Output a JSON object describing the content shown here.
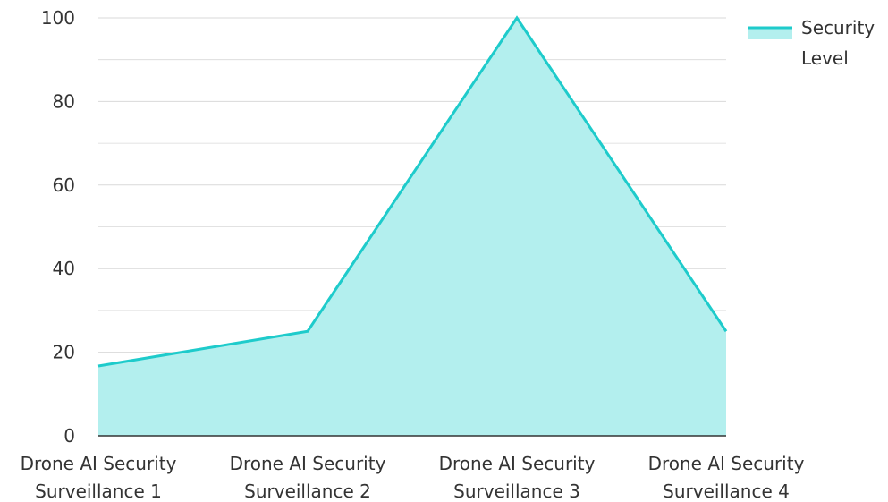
{
  "chart_data": {
    "type": "area",
    "categories": [
      [
        "Drone AI Security",
        "Surveillance 1"
      ],
      [
        "Drone AI Security",
        "Surveillance 2"
      ],
      [
        "Drone AI Security",
        "Surveillance 3"
      ],
      [
        "Drone AI Security",
        "Surveillance 4"
      ]
    ],
    "series": [
      {
        "name": "Security Level",
        "values": [
          16.7,
          25,
          100,
          25
        ]
      }
    ],
    "legend": {
      "label_lines": [
        "Security",
        "Level"
      ],
      "placement": "top-right"
    },
    "ylim": [
      0,
      100
    ],
    "yticks": [
      0,
      20,
      40,
      60,
      80,
      100
    ],
    "grid": true,
    "colors": {
      "line": "#1ecbcb",
      "fill": "#b3efee",
      "grid": "#d9d9d9",
      "axis": "#333333"
    }
  }
}
